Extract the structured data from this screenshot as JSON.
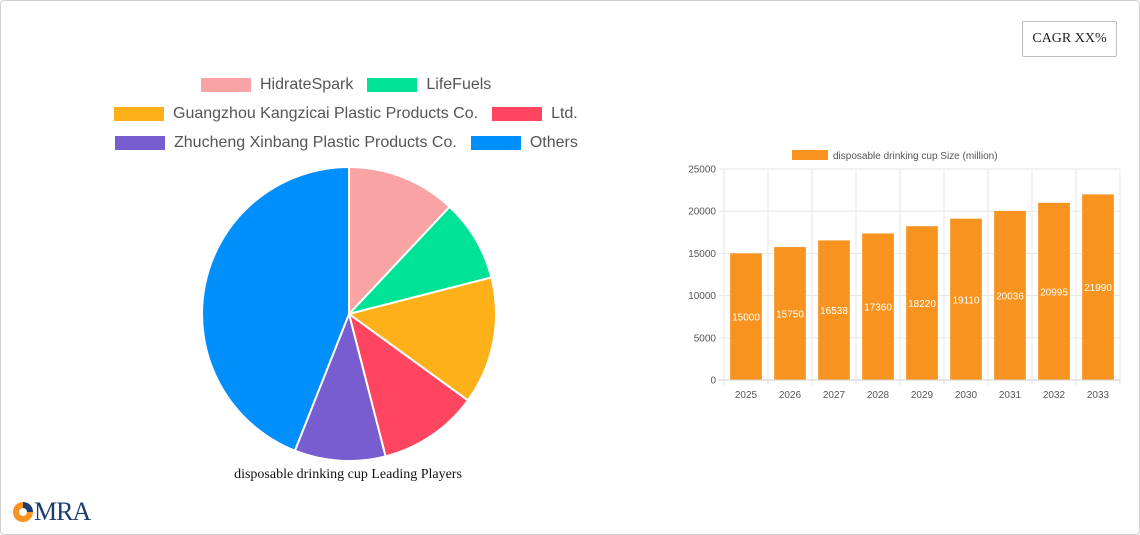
{
  "cagr_label": "CAGR XX%",
  "logo_text": "MRA",
  "pie": {
    "caption": "disposable drinking cup Leading Players",
    "legend_rows": [
      [
        {
          "label": "HidrateSpark",
          "color": "#f9a3a4"
        },
        {
          "label": "LifeFuels",
          "color": "#00e396"
        }
      ],
      [
        {
          "label": "Guangzhou Kangzicai Plastic Products Co.",
          "color": "#feb019"
        },
        {
          "label": "Ltd.",
          "color": "#ff4560"
        }
      ],
      [
        {
          "label": "Zhucheng Xinbang Plastic Products Co.",
          "color": "#775dd0"
        },
        {
          "label": "Others",
          "color": "#008ffb"
        }
      ]
    ]
  },
  "chart_data": [
    {
      "type": "pie",
      "title": "",
      "labels": [
        "HidrateSpark",
        "LifeFuels",
        "Guangzhou Kangzicai Plastic Products Co.",
        "Ltd.",
        "Zhucheng Xinbang Plastic Products Co.",
        "Others"
      ],
      "values": [
        12,
        9,
        14,
        11,
        10,
        44
      ],
      "colors": [
        "#f9a3a4",
        "#00e396",
        "#feb019",
        "#ff4560",
        "#775dd0",
        "#008ffb"
      ],
      "legend": "top"
    },
    {
      "type": "bar",
      "series_label": "disposable drinking cup Size (million)",
      "categories": [
        "2025",
        "2026",
        "2027",
        "2028",
        "2029",
        "2030",
        "2031",
        "2032",
        "2033"
      ],
      "values": [
        15000,
        15750,
        16538,
        17360,
        18220,
        19110,
        20036,
        20995,
        21990
      ],
      "yticks": [
        "0",
        "5000",
        "10000",
        "15000",
        "20000",
        "25000"
      ],
      "ylim": [
        0,
        25000
      ],
      "color": "#f7931e",
      "grid": true,
      "legend": "top"
    }
  ]
}
